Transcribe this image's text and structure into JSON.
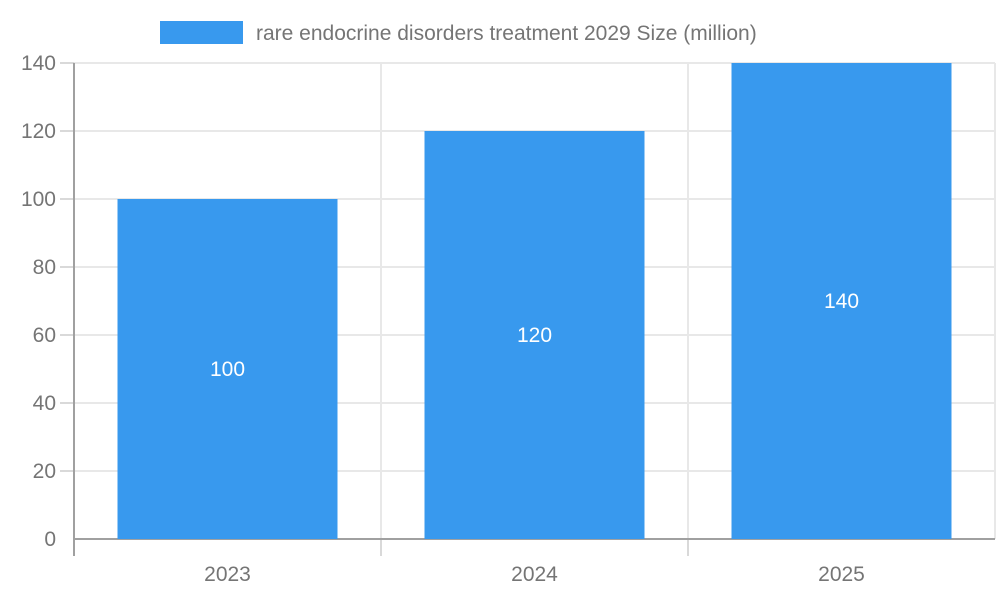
{
  "chart_data": {
    "type": "bar",
    "title": "rare endocrine disorders treatment 2029 Size (million)",
    "categories": [
      "2023",
      "2024",
      "2025"
    ],
    "values": [
      100,
      120,
      140
    ],
    "bar_labels": [
      "100",
      "120",
      "140"
    ],
    "yticks": [
      0,
      20,
      40,
      60,
      80,
      100,
      120,
      140
    ],
    "ylim": [
      0,
      140
    ],
    "xlabel": "",
    "ylabel": "",
    "grid": true,
    "legend_position": "top",
    "colors": {
      "bar": "#3899ee",
      "axis": "#a0a0a0",
      "grid": "#e8e8e8",
      "tick": "#d9d9d9",
      "text": "#757575",
      "bar_label": "#ffffff"
    }
  }
}
